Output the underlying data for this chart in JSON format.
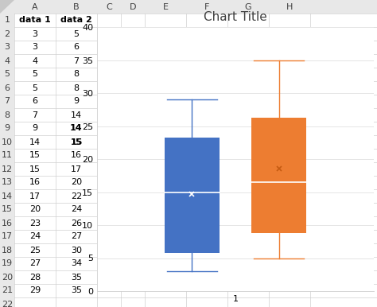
{
  "data1": [
    3,
    3,
    4,
    5,
    5,
    6,
    7,
    9,
    14,
    15,
    15,
    16,
    17,
    20,
    23,
    24,
    25,
    27,
    28,
    29
  ],
  "data2": [
    5,
    6,
    7,
    8,
    8,
    9,
    14,
    14,
    15,
    16,
    17,
    20,
    22,
    24,
    26,
    27,
    30,
    34,
    35,
    35
  ],
  "col_headers": [
    "A",
    "B",
    "C",
    "D",
    "E",
    "F",
    "G",
    "H"
  ],
  "row_labels": [
    "data 1",
    "data 2"
  ],
  "title": "Chart Title",
  "xlabel": "1",
  "ylim": [
    0,
    40
  ],
  "yticks": [
    0,
    5,
    10,
    15,
    20,
    25,
    30,
    35,
    40
  ],
  "color1": "#4472C4",
  "color2": "#ED7D31",
  "background_color": "#FFFFFF",
  "excel_bg": "#FFFFFF",
  "header_bg": "#F2F2F2",
  "grid_line_color": "#D0D0D0",
  "chart_border_color": "#C0C0C0",
  "title_fontsize": 11,
  "label_fontsize": 8,
  "cell_fontsize": 8,
  "header_fontsize": 8
}
